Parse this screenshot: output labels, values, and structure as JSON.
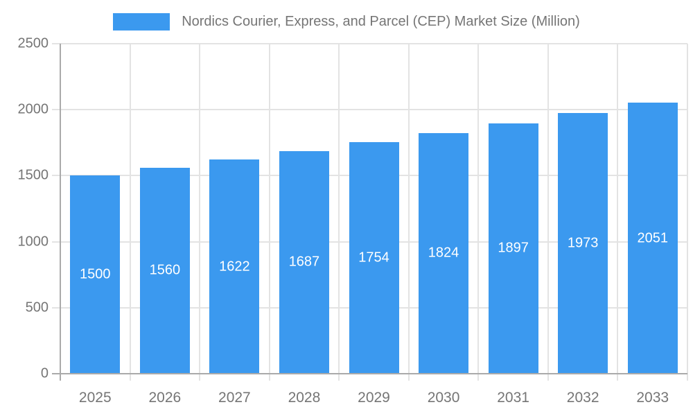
{
  "chart_data": {
    "type": "bar",
    "title": "Nordics Courier, Express, and Parcel (CEP) Market Size (Million)",
    "categories": [
      "2025",
      "2026",
      "2027",
      "2028",
      "2029",
      "2030",
      "2031",
      "2032",
      "2033"
    ],
    "values": [
      1500,
      1560,
      1622,
      1687,
      1754,
      1824,
      1897,
      1973,
      2051
    ],
    "data_labels_shown": true,
    "xlabel": "",
    "ylabel": "",
    "ylim": [
      0,
      2500
    ],
    "yticks": [
      0,
      500,
      1000,
      1500,
      2000,
      2500
    ],
    "grid": true,
    "legend_position": "top",
    "colors": {
      "bar": "#3B99EF",
      "bar_label_text": "#ffffff",
      "axis_text": "#757575",
      "grid_line": "#e3e3e3",
      "axis_line": "#aaaaaa",
      "background": "#ffffff"
    }
  }
}
